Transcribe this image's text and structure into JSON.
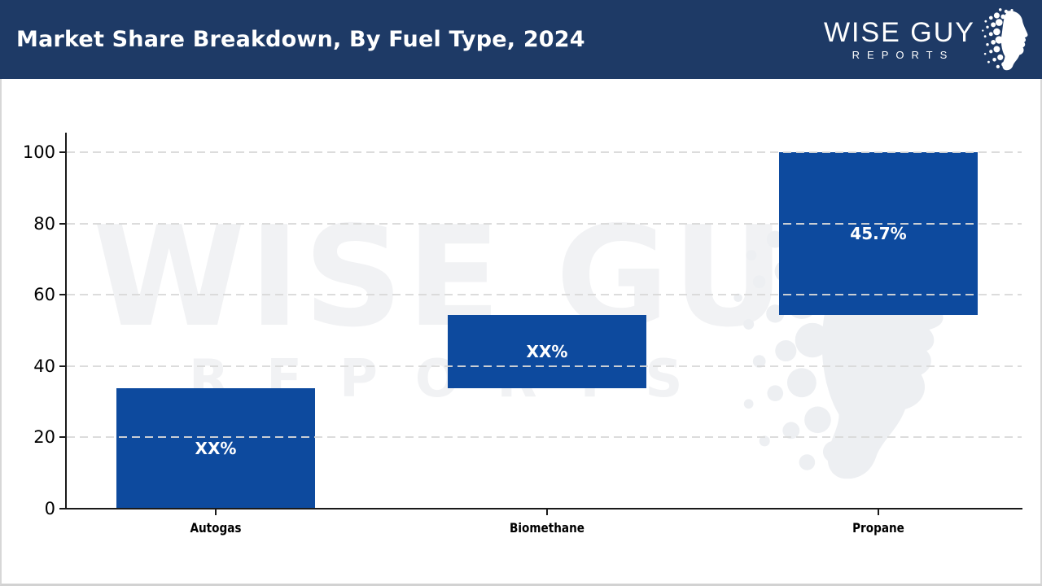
{
  "header": {
    "title": "Market Share Breakdown, By Fuel Type, 2024",
    "logo": {
      "name_line": "WISE GUY",
      "sub_line": "REPORTS"
    }
  },
  "watermark": {
    "name_line": "WISE GUY",
    "sub_line": "REPORTS"
  },
  "theme": {
    "header_bg": "#1e3a66",
    "bar_color": "#0d4a9e",
    "grid_color": "#d9d9d9",
    "axis_color": "#1a1a1a",
    "bar_label_color": "#ffffff",
    "watermark_text_color": "#f1f2f4",
    "watermark_face_color": "#edeff2"
  },
  "chart_data": {
    "type": "bar",
    "subtype": "floating_segment_breakdown",
    "title": "Market Share Breakdown, By Fuel Type, 2024",
    "categories": [
      "Autogas",
      "Biomethane",
      "Propane"
    ],
    "bars": [
      {
        "category": "Autogas",
        "start": 0,
        "end": 33.8,
        "value_label": "XX%"
      },
      {
        "category": "Biomethane",
        "start": 33.8,
        "end": 54.3,
        "value_label": "XX%"
      },
      {
        "category": "Propane",
        "start": 54.3,
        "end": 100,
        "value_label": "45.7%"
      }
    ],
    "yticks": [
      0,
      20,
      40,
      60,
      80,
      100
    ],
    "ylim": [
      0,
      105.5
    ],
    "xlabel": "",
    "ylabel": "",
    "grid": "horizontal dashed",
    "legend": "none"
  }
}
